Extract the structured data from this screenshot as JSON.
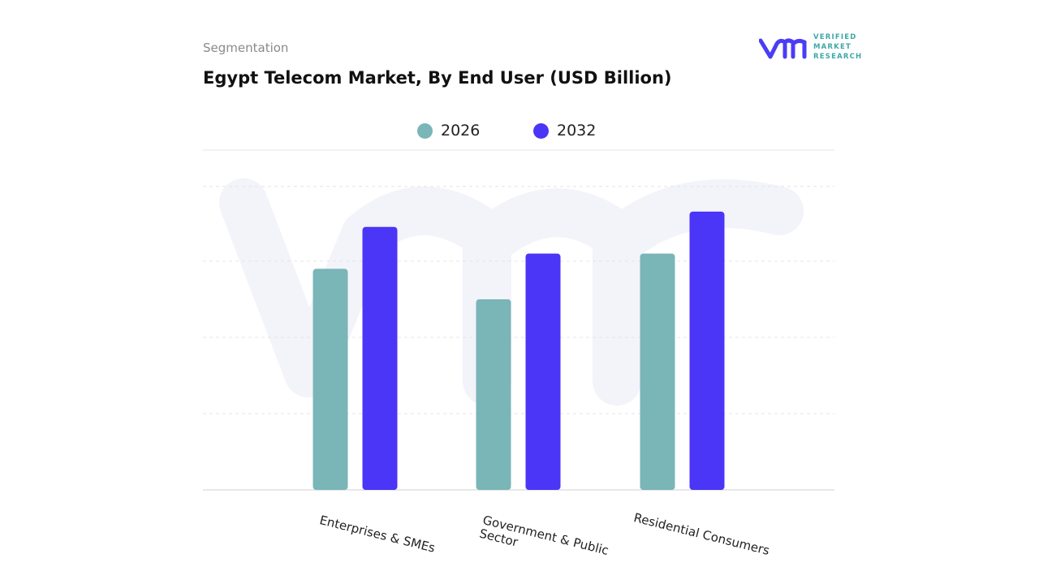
{
  "header": {
    "eyebrow": "Segmentation",
    "title": "Egypt Telecom Market, By End User (USD Billion)"
  },
  "logo": {
    "text": "VERIFIED MARKET RESEARCH",
    "line1": "VERIFIED",
    "line2": "MARKET",
    "line3": "RESEARCH",
    "color": "#4a3df5",
    "accent": "#3fa8a8"
  },
  "chart_data": {
    "type": "bar",
    "title": "Egypt Telecom Market, By End User (USD Billion)",
    "categories": [
      "Enterprises & SMEs",
      "Government & Public\nSector",
      "Residential Consumers"
    ],
    "series": [
      {
        "name": "2026",
        "color": "#7ab5b8",
        "values": [
          2.9,
          2.5,
          3.1
        ]
      },
      {
        "name": "2032",
        "color": "#4b35f7",
        "values": [
          3.45,
          3.1,
          3.65
        ]
      }
    ],
    "ylim": [
      0,
      4.5
    ],
    "y_tick_labels_shown": false,
    "grid": true,
    "legend": "top-center",
    "xlabel": "",
    "ylabel": ""
  }
}
